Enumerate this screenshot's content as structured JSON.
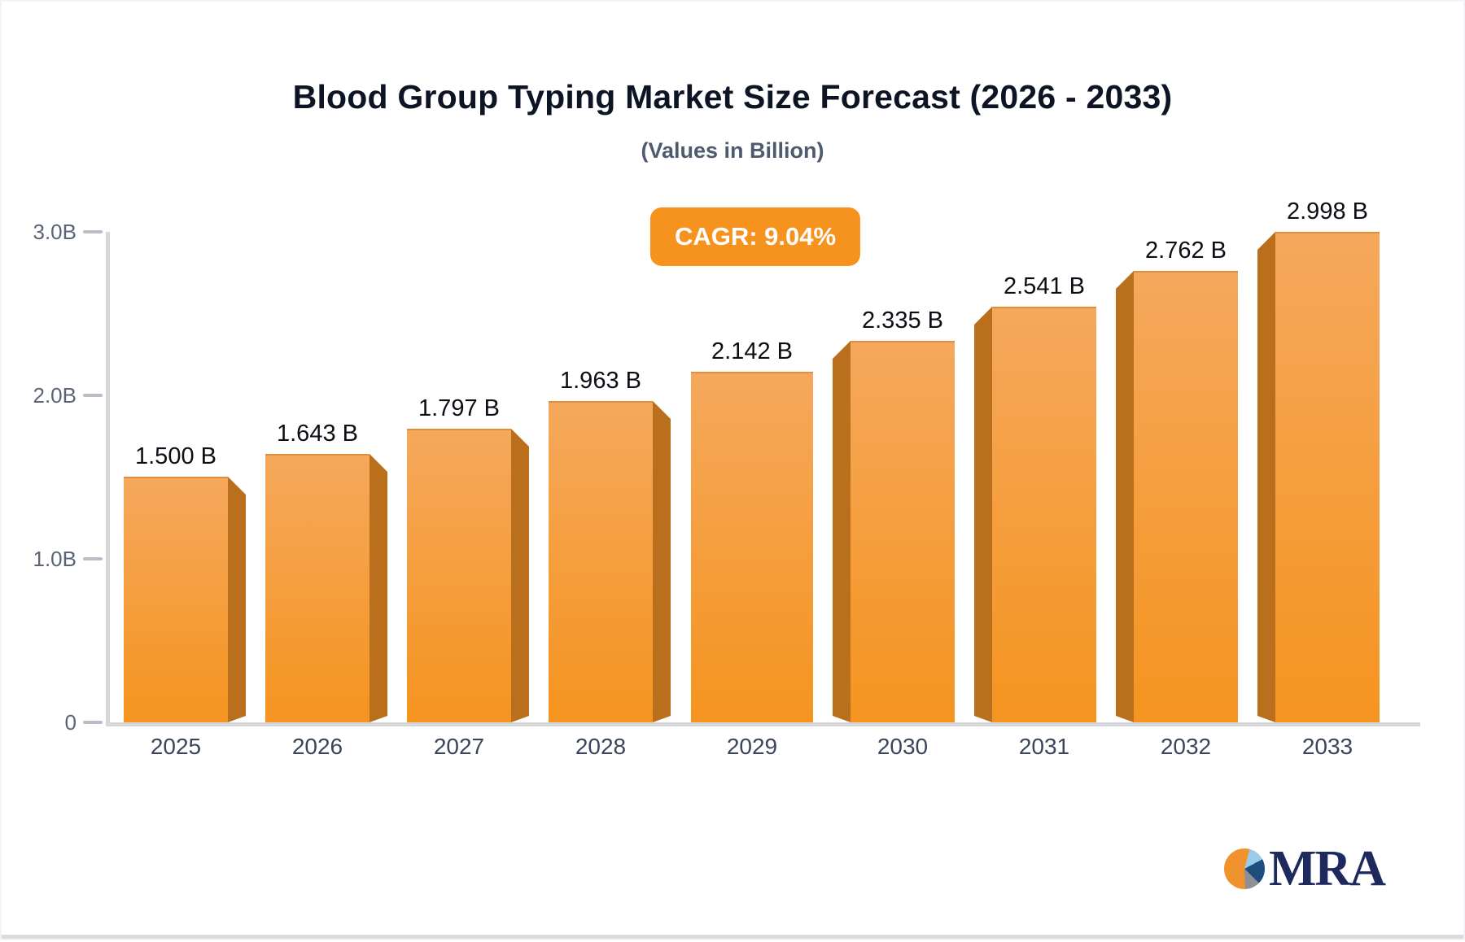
{
  "header": {
    "title": "Blood Group Typing Market Size Forecast (2026 - 2033)",
    "subtitle": "(Values in Billion)"
  },
  "badge": {
    "label": "CAGR: 9.04%",
    "cagr_percent": "9.04",
    "bg_color": "#F6921E",
    "text_color": "#FFFFFF"
  },
  "chart_data": {
    "type": "bar",
    "title": "Blood Group Typing Market Size Forecast (2026 - 2033)",
    "subtitle": "(Values in Billion)",
    "categories": [
      "2025",
      "2026",
      "2027",
      "2028",
      "2029",
      "2030",
      "2031",
      "2032",
      "2033"
    ],
    "values": [
      1.5,
      1.643,
      1.797,
      1.963,
      2.142,
      2.335,
      2.541,
      2.762,
      2.998
    ],
    "value_labels": [
      "1.500 B",
      "1.643 B",
      "1.797 B",
      "1.963 B",
      "2.142 B",
      "2.335 B",
      "2.541 B",
      "2.762 B",
      "2.998 B"
    ],
    "yticks": [
      {
        "value": 0,
        "label": "0"
      },
      {
        "value": 1,
        "label": "1.0B"
      },
      {
        "value": 2,
        "label": "2.0B"
      },
      {
        "value": 3,
        "label": "3.0B"
      }
    ],
    "ylim": [
      0,
      3.0
    ],
    "xlabel": "",
    "ylabel": "",
    "grid": false,
    "legend": false,
    "colors": {
      "bar_gradient_top": "#F5A85C",
      "bar_gradient_bottom": "#F5941F",
      "bar_side": "#B96F1C",
      "axis_line": "#D5D7DB",
      "tick_mark": "#B9BEC6",
      "y_tick_text": "#5A6478",
      "x_tick_text": "#3A4559",
      "value_text": "#0B0E14"
    }
  },
  "logo": {
    "text": "MRA",
    "text_color": "#1E2A5E",
    "pie_colors": {
      "orange": "#F0922D",
      "light_blue": "#9CCBE9",
      "navy": "#1D4E7E",
      "gray": "#8E9094"
    }
  }
}
